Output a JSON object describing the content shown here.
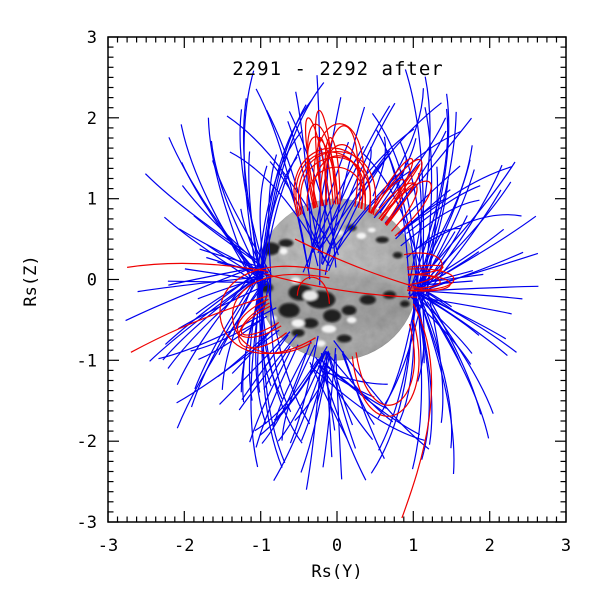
{
  "chart_data": {
    "type": "line",
    "title": "2291 - 2292 after",
    "description": "Solar coronal magnetic field line rendering (PFSS-style) over a grayscale synoptic magnetogram sphere. Blue = open field lines, red = closed field lines. Units in solar radii.",
    "legend": "none",
    "grid": false,
    "axes": {
      "x": {
        "label": "Rs(Y)",
        "min": -3,
        "max": 3,
        "major_step": 1,
        "minor_step": 0.125,
        "tick_labels": [
          "-3",
          "-2",
          "-1",
          "0",
          "1",
          "2",
          "3"
        ]
      },
      "y": {
        "label": "Rs(Z)",
        "min": -3,
        "max": 3,
        "major_step": 1,
        "minor_step": 0.125,
        "tick_labels": [
          "-3",
          "-2",
          "-1",
          "0",
          "1",
          "2",
          "3"
        ]
      }
    },
    "colors": {
      "open_field": "#0000ee",
      "closed_field": "#ee0000",
      "frame": "#000000",
      "background": "#ffffff",
      "sphere_base": "#9e9e9e",
      "ar_dark": "#0a0a0a",
      "ar_light": "#fcfcfc"
    },
    "sphere": {
      "center": [
        0,
        0
      ],
      "radius": 1.0,
      "active_regions_dark": [
        [
          -0.83,
          0.38,
          0.13,
          0.08
        ],
        [
          -0.63,
          0.45,
          0.09,
          0.05
        ],
        [
          -0.45,
          -0.16,
          0.15,
          0.1
        ],
        [
          -0.2,
          -0.25,
          0.18,
          0.11
        ],
        [
          -0.59,
          -0.38,
          0.13,
          0.09
        ],
        [
          -0.06,
          -0.45,
          0.11,
          0.08
        ],
        [
          -0.33,
          -0.54,
          0.1,
          0.06
        ],
        [
          0.15,
          -0.38,
          0.09,
          0.06
        ],
        [
          0.38,
          -0.25,
          0.1,
          0.06
        ],
        [
          0.65,
          -0.19,
          0.08,
          0.05
        ],
        [
          0.84,
          -0.3,
          0.06,
          0.04
        ],
        [
          0.18,
          0.64,
          0.06,
          0.04
        ],
        [
          0.56,
          0.49,
          0.08,
          0.04
        ],
        [
          0.75,
          0.3,
          0.06,
          0.04
        ],
        [
          0.09,
          -0.73,
          0.09,
          0.05
        ],
        [
          -0.48,
          -0.66,
          0.08,
          0.05
        ],
        [
          -0.88,
          -0.1,
          0.09,
          0.06
        ],
        [
          -0.95,
          -0.29,
          0.06,
          0.05
        ]
      ],
      "active_regions_light": [
        [
          -0.66,
          0.35,
          0.05,
          0.04
        ],
        [
          -0.33,
          -0.2,
          0.09,
          0.06
        ],
        [
          -0.48,
          -0.54,
          0.08,
          0.05
        ],
        [
          -0.1,
          -0.61,
          0.09,
          0.05
        ],
        [
          0.18,
          -0.5,
          0.06,
          0.04
        ],
        [
          -0.51,
          -0.01,
          0.06,
          0.04
        ],
        [
          0.3,
          0.54,
          0.06,
          0.04
        ],
        [
          0.43,
          0.61,
          0.05,
          0.03
        ],
        [
          0.03,
          0.58,
          0.05,
          0.03
        ],
        [
          -0.2,
          -0.79,
          0.06,
          0.04
        ],
        [
          -0.79,
          -0.48,
          0.05,
          0.04
        ]
      ]
    },
    "open_field_groups": [
      {
        "id": "left-fan",
        "origin": [
          -1.0,
          0.07
        ],
        "origin_jitter": 0.16,
        "angles": [
          96,
          260
        ],
        "angle_jitter": 4,
        "end_radius": [
          1.5,
          2.85
        ],
        "count": 60,
        "curve": 16,
        "seed": 7
      },
      {
        "id": "right-fan",
        "origin": [
          1.06,
          -0.17
        ],
        "origin_jitter": 0.16,
        "angles": [
          -78,
          79
        ],
        "angle_jitter": 4,
        "end_radius": [
          1.5,
          2.85
        ],
        "count": 60,
        "curve": 16,
        "seed": 8
      },
      {
        "id": "top-fan",
        "origin": [
          -0.2,
          0.2
        ],
        "origin_jitter": 0.28,
        "angles": [
          50,
          130
        ],
        "angle_jitter": 5,
        "end_radius": [
          1.5,
          2.65
        ],
        "count": 24,
        "curve": 14,
        "seed": 9
      },
      {
        "id": "top-right-fan",
        "limb_radius": [
          0.9,
          1.15
        ],
        "angles": [
          18,
          72
        ],
        "angle_jitter": 6,
        "end_radius": [
          1.7,
          2.75
        ],
        "count": 16,
        "curve": 24,
        "seed": 10
      },
      {
        "id": "bottom-fan",
        "origin": [
          -0.12,
          -0.88
        ],
        "origin_jitter": 0.3,
        "angles": [
          240,
          302
        ],
        "angle_jitter": 5,
        "end_radius": [
          1.45,
          2.65
        ],
        "count": 30,
        "curve": 12,
        "seed": 11
      },
      {
        "id": "bottom-left-fan",
        "limb_radius": [
          0.85,
          1.1
        ],
        "angles": [
          204,
          252
        ],
        "angle_jitter": 6,
        "end_radius": [
          1.5,
          2.6
        ],
        "count": 14,
        "curve": 10,
        "seed": 12
      }
    ],
    "closed_field_groups": [
      {
        "id": "polar-loops",
        "foot1": [
          96,
          126
        ],
        "foot2": [
          58,
          84
        ],
        "apex_radius": [
          1.15,
          1.8
        ],
        "count": 9,
        "seed": 21
      },
      {
        "id": "polar-narrow-loops",
        "foot1": [
          98,
          116
        ],
        "foot2": [
          86,
          100
        ],
        "apex_radius": [
          1.45,
          1.9
        ],
        "count": 6,
        "seed": 22
      },
      {
        "id": "ne-loops",
        "foot1": [
          52,
          72
        ],
        "foot2": [
          34,
          52
        ],
        "apex_radius": [
          1.25,
          1.6
        ],
        "count": 7,
        "seed": 23
      },
      {
        "id": "right-limb-loops",
        "foot1": [
          2,
          24
        ],
        "foot2": [
          -18,
          4
        ],
        "apex_radius": [
          1.08,
          1.32
        ],
        "count": 5,
        "seed": 24
      },
      {
        "id": "sw-limb-loops",
        "foot1": [
          188,
          205
        ],
        "foot2": [
          210,
          228
        ],
        "apex_radius": [
          1.15,
          1.35
        ],
        "count": 3,
        "seed": 25
      }
    ],
    "closed_field_explicit": [
      [
        [
          -0.12,
          0.1
        ],
        [
          -2.2,
          0.55
        ],
        [
          -1.75,
          -1.55
        ],
        [
          -0.28,
          -0.72
        ]
      ],
      [
        [
          -0.1,
          0.02
        ],
        [
          -2.0,
          0.35
        ],
        [
          -1.5,
          -1.4
        ],
        [
          -0.33,
          -0.78
        ]
      ],
      [
        [
          -0.9,
          0.1
        ],
        [
          -1.8,
          0.25
        ],
        [
          -2.4,
          0.2
        ],
        [
          -2.75,
          0.15
        ]
      ],
      [
        [
          -0.9,
          -0.2
        ],
        [
          -1.9,
          -0.5
        ],
        [
          -2.4,
          -0.75
        ],
        [
          -2.7,
          -0.9
        ]
      ],
      [
        [
          0.2,
          -0.95
        ],
        [
          0.35,
          -2.2
        ],
        [
          1.35,
          -1.75
        ],
        [
          1.0,
          -0.5
        ]
      ],
      [
        [
          0.25,
          -0.9
        ],
        [
          0.42,
          -2.0
        ],
        [
          1.25,
          -1.6
        ],
        [
          0.95,
          -0.55
        ]
      ],
      [
        [
          -0.55,
          0.5
        ],
        [
          0.2,
          0.15
        ],
        [
          0.7,
          0.0
        ],
        [
          1.12,
          -0.12
        ]
      ],
      [
        [
          -0.95,
          0.07
        ],
        [
          -0.3,
          -0.1
        ],
        [
          0.4,
          -0.2
        ],
        [
          1.05,
          -0.22
        ]
      ],
      [
        [
          -0.52,
          -0.2
        ],
        [
          -0.5,
          0.12
        ],
        [
          -0.12,
          0.12
        ],
        [
          -0.1,
          -0.3
        ]
      ],
      [
        [
          1.0,
          -0.3
        ],
        [
          1.5,
          -1.2
        ],
        [
          1.1,
          -2.3
        ],
        [
          0.85,
          -2.95
        ]
      ]
    ]
  }
}
